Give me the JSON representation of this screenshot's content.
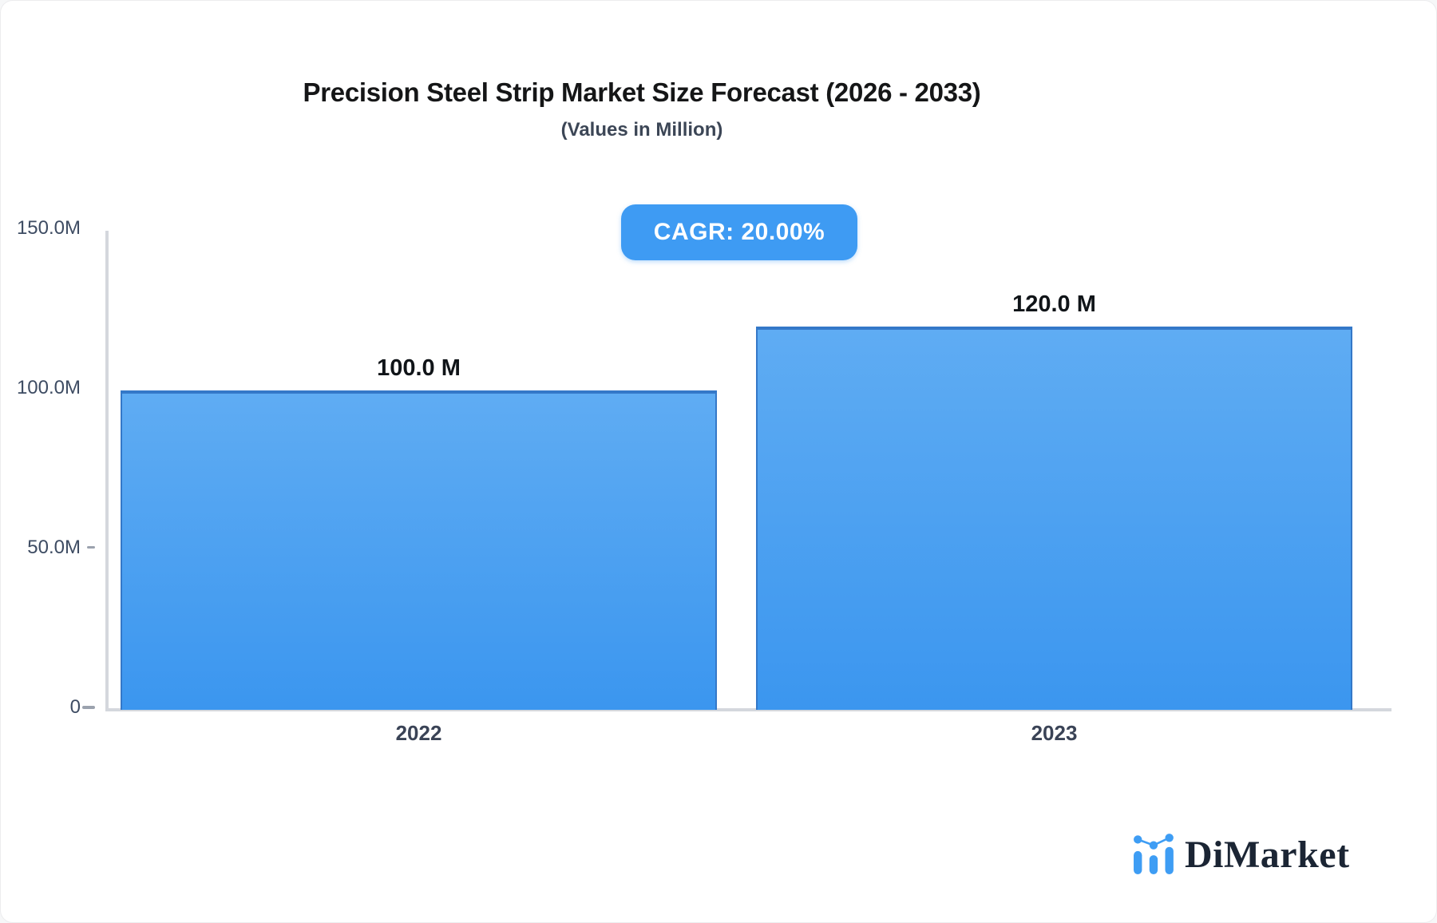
{
  "header": {
    "title": "Precision Steel Strip Market Size Forecast (2026 - 2033)",
    "subtitle": "(Values in Million)",
    "cagr_badge": "CAGR: 20.00%"
  },
  "chart_data": {
    "type": "bar",
    "title": "Precision Steel Strip Market Size Forecast (2026 - 2033)",
    "subtitle": "(Values in Million)",
    "cagr": "20.00%",
    "categories": [
      "2022",
      "2023"
    ],
    "values": [
      100.0,
      120.0
    ],
    "bar_labels": [
      "100.0 M",
      "120.0 M"
    ],
    "unit": "Million",
    "xlabel": "",
    "ylabel": "",
    "ylim": [
      0,
      150
    ],
    "yticks": [
      {
        "label": "150.0M",
        "value": 150,
        "dash": "none"
      },
      {
        "label": "100.0M",
        "value": 100,
        "dash": "none"
      },
      {
        "label": "50.0M",
        "value": 50,
        "dash": "short"
      },
      {
        "label": "0",
        "value": 0,
        "dash": "long"
      }
    ],
    "grid": false,
    "legend_position": "none"
  },
  "branding": {
    "logo_text": "DiMarket",
    "logo_icon": "bar-line-chart-logo-icon"
  },
  "colors": {
    "bar_gradient_top": "#5FACF3",
    "bar_gradient_bottom": "#3B96EF",
    "bar_border": "#3478C8",
    "badge_background": "#3E9BF3",
    "badge_text": "#FFFFFF",
    "axis_line": "#D4D7DD",
    "tick_mark": "#9BA2AE",
    "y_axis_label": "#3E4C63",
    "x_axis_label": "#3A4356",
    "value_label": "#101418",
    "title_text": "#151617",
    "subtitle_text": "#3C4656",
    "logo_blue": "#3E9DF4",
    "logo_navy": "#1B2534"
  }
}
